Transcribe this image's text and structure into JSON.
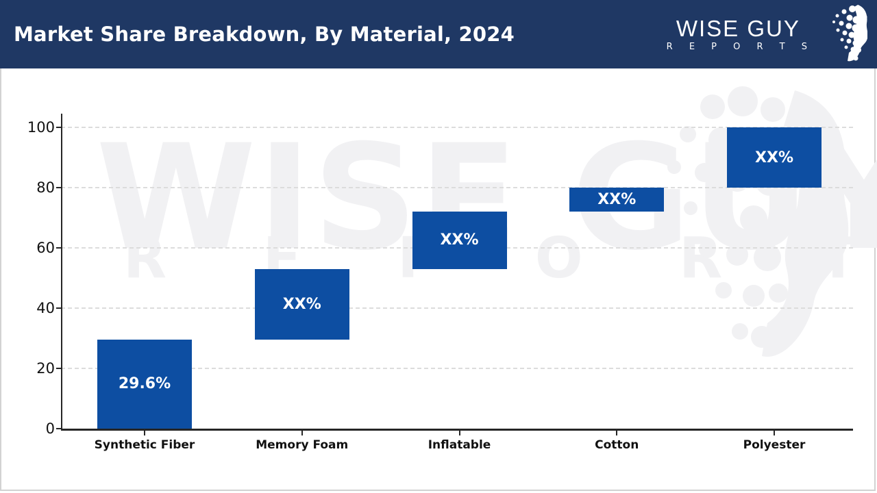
{
  "header": {
    "title": "Market Share Breakdown, By Material, 2024",
    "logo_line1": "WISE GUY",
    "logo_line2": "R E P O R T S",
    "bg_color": "#1f3864"
  },
  "watermark": {
    "line1": "WISE GUY",
    "line2": "R E P O R T S"
  },
  "chart_data": {
    "type": "bar",
    "subtype": "waterfall",
    "title": "Market Share Breakdown, By Material, 2024",
    "categories": [
      "Synthetic Fiber",
      "Memory Foam",
      "Inflatable",
      "Cotton",
      "Polyester"
    ],
    "series": [
      {
        "name": "Synthetic Fiber",
        "start": 0,
        "end": 29.6,
        "label": "29.6%"
      },
      {
        "name": "Memory Foam",
        "start": 29.6,
        "end": 53,
        "label": "XX%"
      },
      {
        "name": "Inflatable",
        "start": 53,
        "end": 72,
        "label": "XX%"
      },
      {
        "name": "Cotton",
        "start": 72,
        "end": 80,
        "label": "XX%"
      },
      {
        "name": "Polyester",
        "start": 80,
        "end": 100,
        "label": "XX%"
      }
    ],
    "xlabel": "",
    "ylabel": "",
    "ylim": [
      0,
      104
    ],
    "yticks": [
      0,
      20,
      40,
      60,
      80,
      100
    ],
    "grid": "horizontal-dashed",
    "legend": null,
    "bar_color": "#0d4ea2",
    "axis_color": "#262626",
    "grid_color": "#dcdcdc",
    "label_color_inside": "#ffffff"
  }
}
